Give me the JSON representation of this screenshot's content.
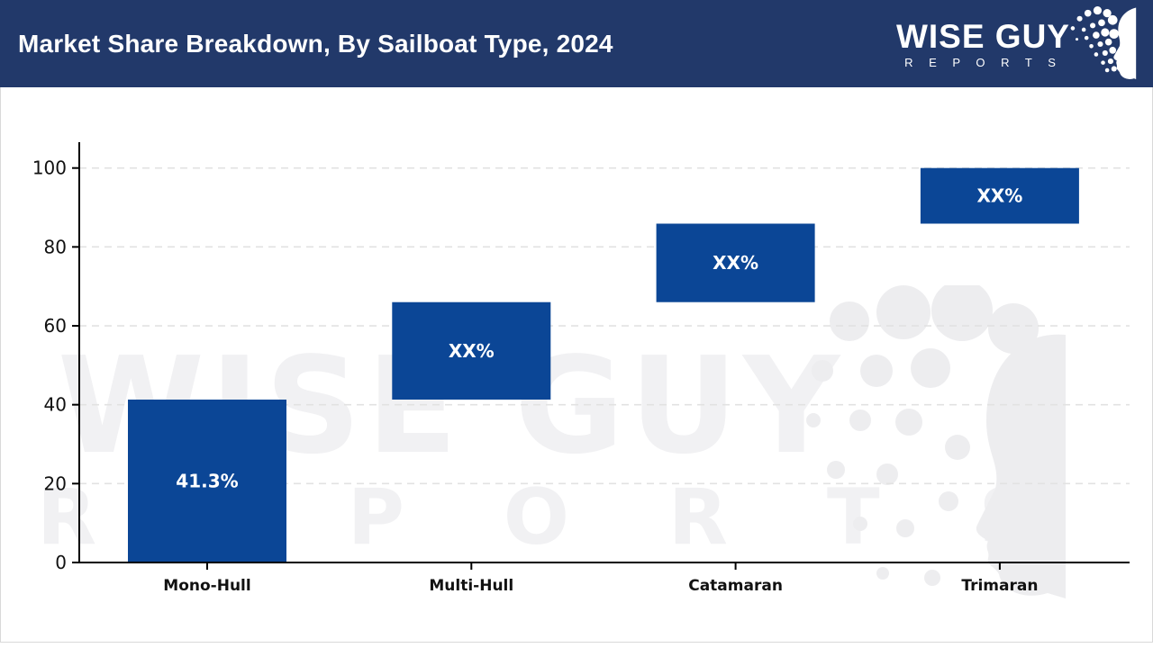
{
  "header": {
    "title": "Market Share Breakdown, By Sailboat Type, 2024",
    "logo": {
      "line1": "WISE GUY",
      "line2": "R E P O R T S"
    }
  },
  "watermark": {
    "line1": "WISE GUY",
    "line2": "R E P O R T S"
  },
  "chart_data": {
    "type": "bar",
    "subtype": "waterfall",
    "title": "Market Share Breakdown, By Sailboat Type, 2024",
    "categories": [
      "Mono-Hull",
      "Multi-Hull",
      "Catamaran",
      "Trimaran"
    ],
    "segments": [
      {
        "category": "Mono-Hull",
        "start": 0,
        "end": 41.3,
        "label": "41.3%"
      },
      {
        "category": "Multi-Hull",
        "start": 41.3,
        "end": 66,
        "label": "XX%"
      },
      {
        "category": "Catamaran",
        "start": 66,
        "end": 85.9,
        "label": "XX%"
      },
      {
        "category": "Trimaran",
        "start": 85.9,
        "end": 100,
        "label": "XX%"
      }
    ],
    "xlabel": "",
    "ylabel": "",
    "ylim": [
      0,
      105
    ],
    "yticks": [
      0,
      20,
      40,
      60,
      80,
      100
    ],
    "grid": "horizontal-dashed",
    "bar_color": "#0b4696",
    "bar_label_color": "#ffffff",
    "axis_color": "#000000",
    "grid_color": "#e2e2e2"
  }
}
